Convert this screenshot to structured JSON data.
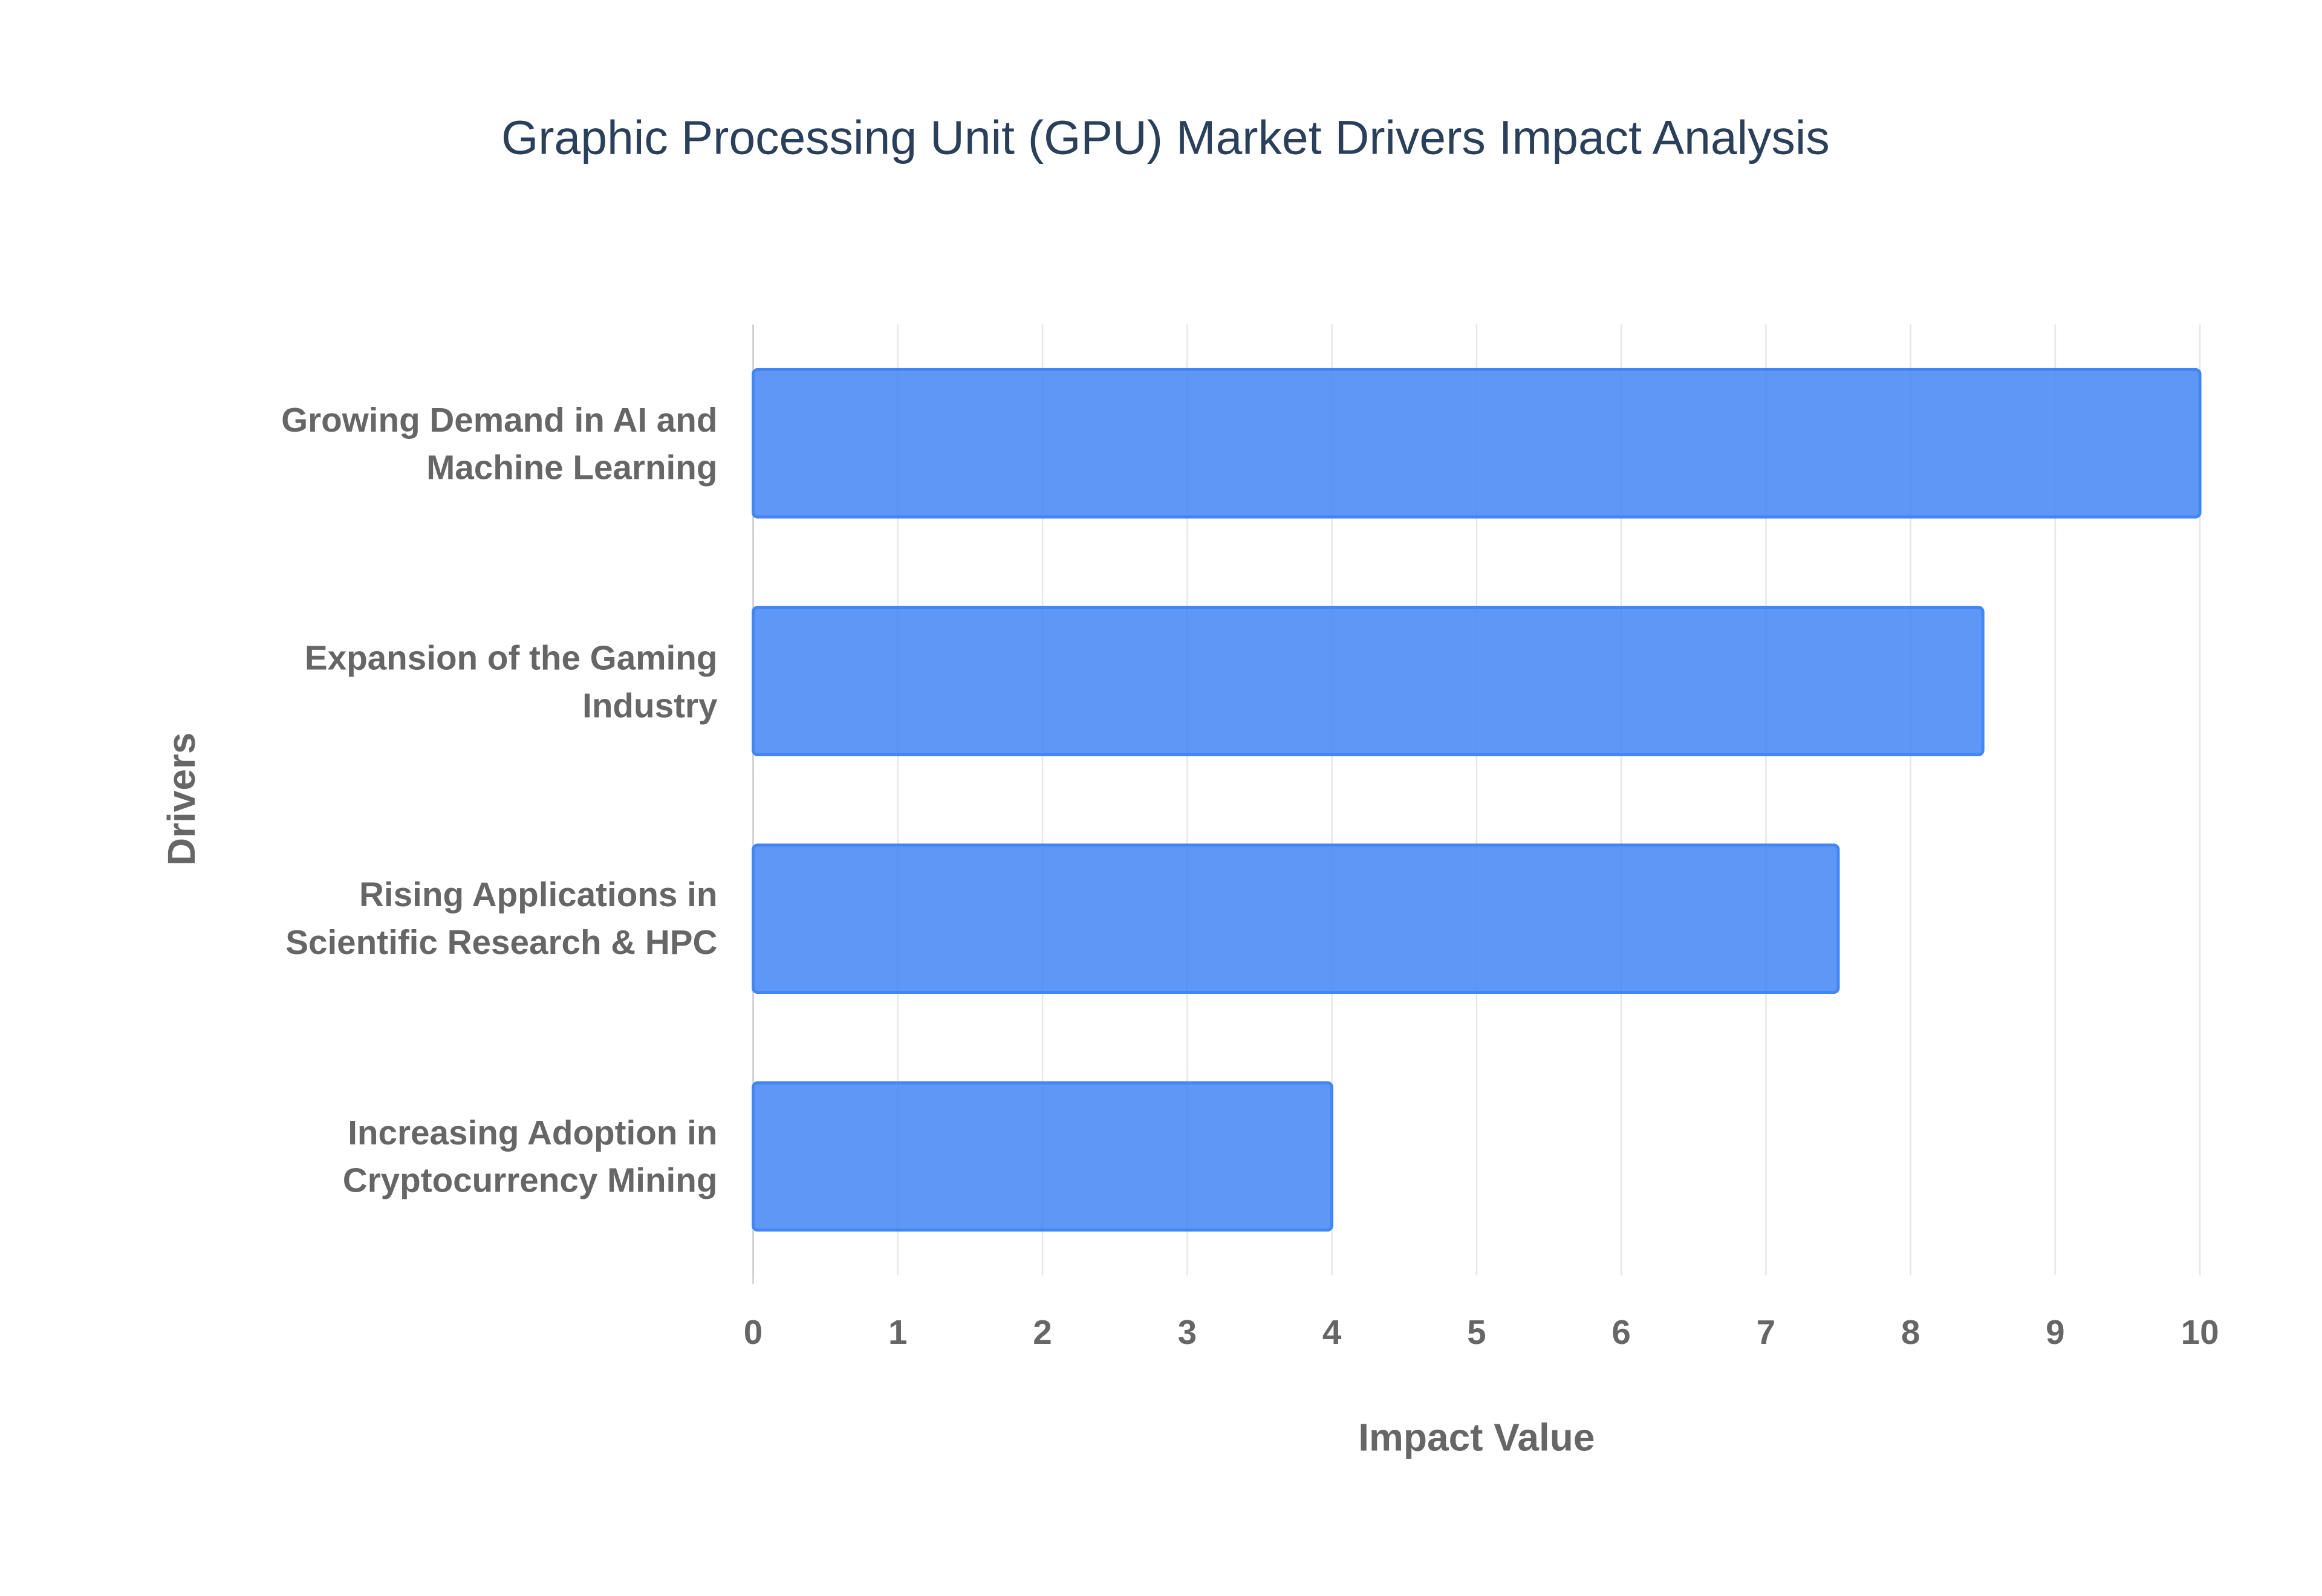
{
  "chart_data": {
    "type": "bar",
    "orientation": "horizontal",
    "title": "Graphic Processing Unit (GPU) Market Drivers Impact Analysis",
    "x_label": "Impact Value",
    "y_label": "Drivers",
    "categories": [
      "Growing Demand in AI and Machine Learning",
      "Expansion of the Gaming Industry",
      "Rising Applications in Scientific Research & HPC",
      "Increasing Adoption in Cryptocurrency Mining"
    ],
    "values": [
      10,
      8.5,
      7.5,
      4
    ],
    "color": "#4285f4",
    "xlim": [
      0,
      10
    ],
    "xticks": [
      0,
      1,
      2,
      3,
      4,
      5,
      6,
      7,
      8,
      9,
      10
    ],
    "grid": true
  }
}
